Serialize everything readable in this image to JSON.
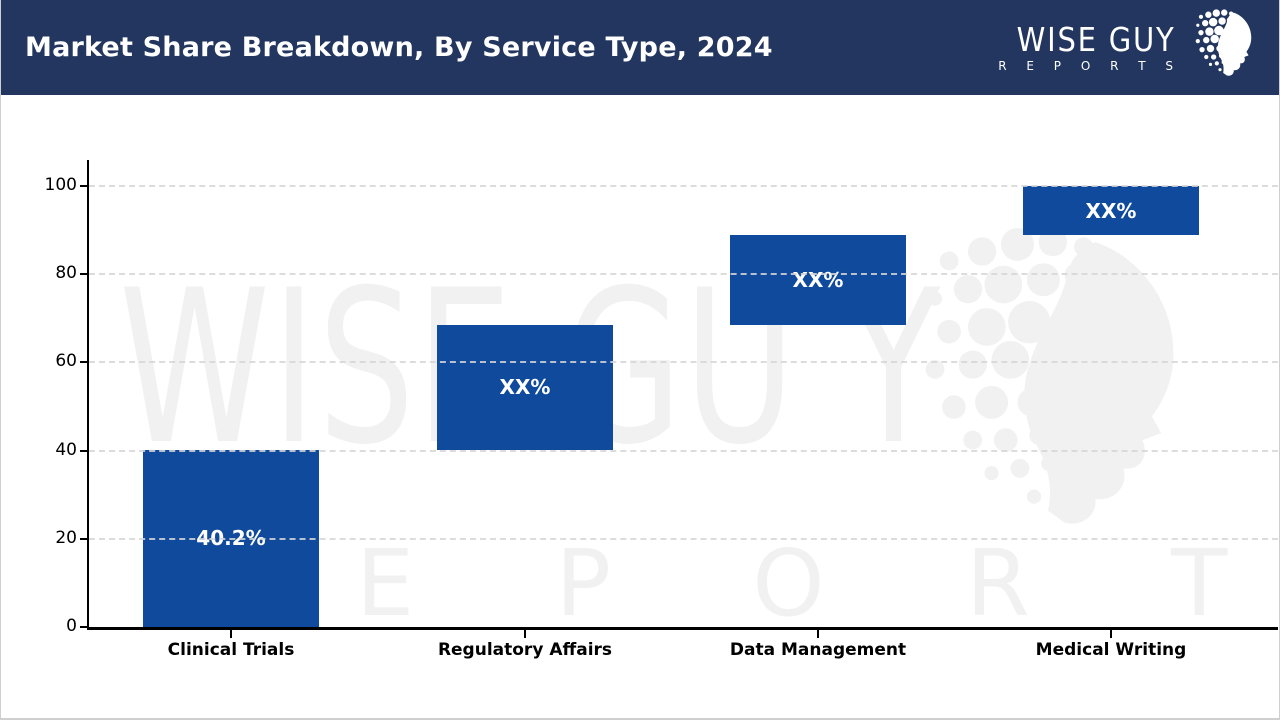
{
  "header": {
    "title": "Market Share Breakdown, By Service Type, 2024",
    "logo": {
      "name": "WISE GUY",
      "subtitle": "R E P O R T S"
    }
  },
  "watermark": {
    "line1": "WISE GU Y",
    "line2": "R E P O R T S"
  },
  "chart_data": {
    "type": "bar",
    "subtype": "waterfall",
    "title": "Market Share Breakdown, By Service Type, 2024",
    "categories": [
      "Clinical Trials",
      "Regulatory Affairs",
      "Data Management",
      "Medical Writing"
    ],
    "segments": [
      {
        "category": "Clinical Trials",
        "start": 0,
        "end": 40.2,
        "value_label": "40.2%"
      },
      {
        "category": "Regulatory Affairs",
        "start": 40.2,
        "end": 68.5,
        "value_label": "XX%"
      },
      {
        "category": "Data Management",
        "start": 68.5,
        "end": 88.8,
        "value_label": "XX%"
      },
      {
        "category": "Medical Writing",
        "start": 88.8,
        "end": 100,
        "value_label": "XX%"
      }
    ],
    "yticks": [
      0,
      20,
      40,
      60,
      80,
      100
    ],
    "ylim": [
      0,
      105
    ],
    "xlabel": "",
    "ylabel": "",
    "grid": true,
    "grid_style": "dashed",
    "legend": "none",
    "bar_color": "#0f4a9d",
    "bar_label_color": "#ffffff"
  },
  "colors": {
    "header_bg": "#22365f",
    "bar_blue": "#0f4a9d",
    "gridline_gray": "#d6d6d6",
    "watermark_gray": "#f1f1f2",
    "border_gray": "#cfcfcf",
    "axis_black": "#000000",
    "text_on_dark": "#ffffff"
  }
}
